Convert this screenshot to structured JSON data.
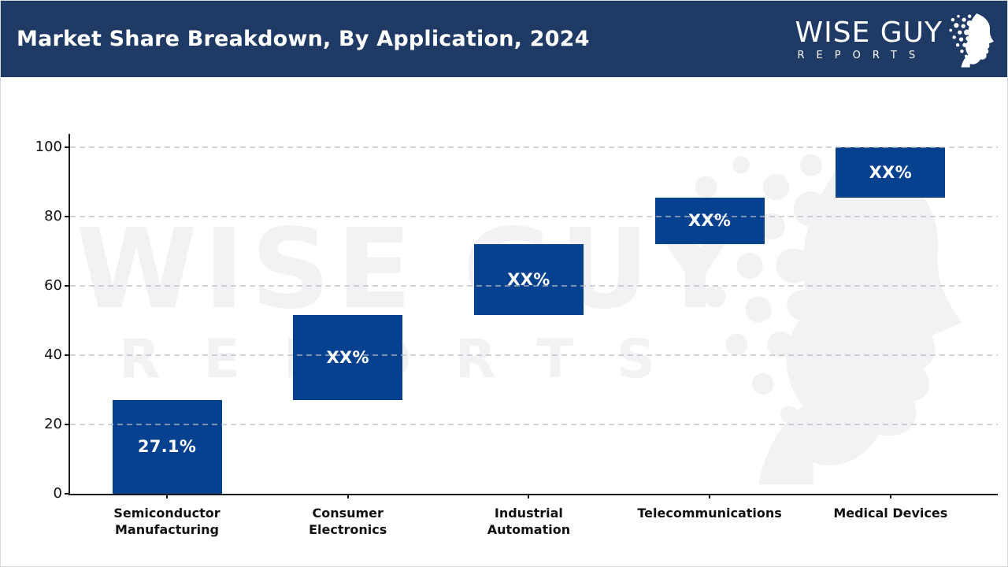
{
  "header": {
    "title": "Market Share Breakdown, By Application, 2024",
    "logo": {
      "line1": "WISE GUY",
      "line2": "REPORTS"
    }
  },
  "watermark": {
    "line1": "WISE GUY",
    "line2": "REPORTS"
  },
  "colors": {
    "header_bg": "#203a66",
    "bar_blue": "#05418f",
    "axis": "#1a1a1a",
    "gridline": "#d9d9d9",
    "bar_label_text": "#ffffff",
    "page_border": "#d9d9d9",
    "watermark": "#f2f2f4"
  },
  "chart_data": {
    "type": "bar",
    "subtype": "waterfall",
    "title": "Market Share Breakdown, By Application, 2024",
    "xlabel": "",
    "ylabel": "",
    "ylim": [
      0,
      105
    ],
    "yticks": [
      0,
      20,
      40,
      60,
      80,
      100
    ],
    "grid": "horizontal dashed, drawn over bars",
    "legend": "none",
    "categories": [
      "Semiconductor\nManufacturing",
      "Consumer\nElectronics",
      "Industrial\nAutomation",
      "Telecommunications",
      "Medical Devices"
    ],
    "segments": [
      {
        "category": "Semiconductor\nManufacturing",
        "start": 0,
        "end": 27.1,
        "label": "27.1%"
      },
      {
        "category": "Consumer\nElectronics",
        "start": 27.1,
        "end": 51.5,
        "label": "XX%"
      },
      {
        "category": "Industrial\nAutomation",
        "start": 51.5,
        "end": 72,
        "label": "XX%"
      },
      {
        "category": "Telecommunications",
        "start": 72,
        "end": 85.5,
        "label": "XX%"
      },
      {
        "category": "Medical Devices",
        "start": 85.5,
        "end": 100,
        "label": "XX%"
      }
    ]
  }
}
